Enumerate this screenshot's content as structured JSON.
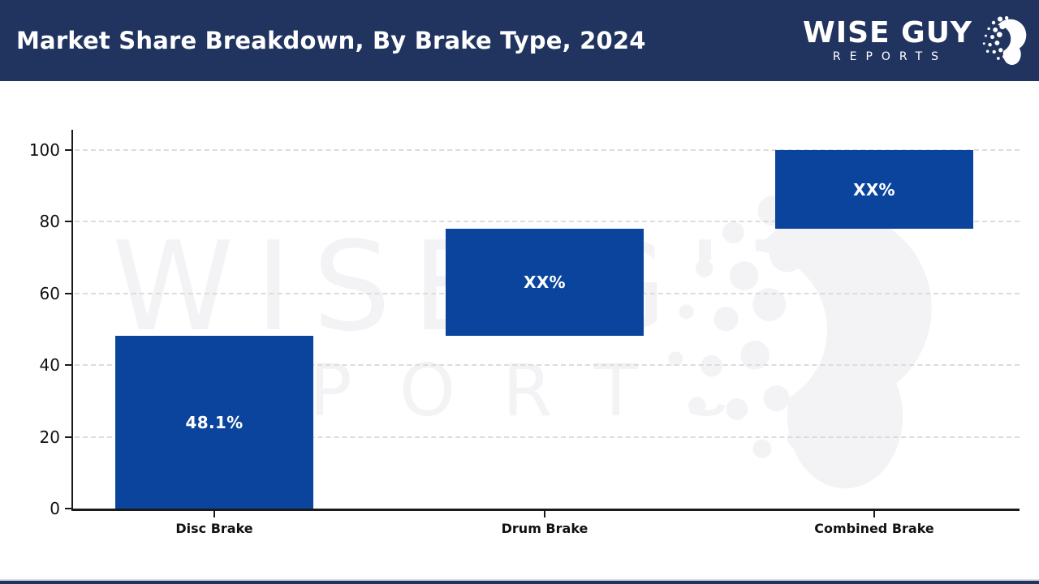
{
  "header": {
    "title": "Market Share Breakdown, By Brake Type, 2024",
    "bg_color": "#213460",
    "logo": {
      "line1": "WISE GUY",
      "line2": "REPORTS"
    }
  },
  "watermark": {
    "line1": "WISE GUY",
    "line2": "REPORTS"
  },
  "chart_data": {
    "type": "bar",
    "subtype": "floating-waterfall",
    "title": "Market Share Breakdown, By Brake Type, 2024",
    "categories": [
      "Disc Brake",
      "Drum Brake",
      "Combined Brake"
    ],
    "segments": [
      {
        "category": "Disc Brake",
        "start": 0,
        "end": 48.1,
        "label": "48.1%"
      },
      {
        "category": "Drum Brake",
        "start": 48.1,
        "end": 78,
        "label": "XX%"
      },
      {
        "category": "Combined Brake",
        "start": 78,
        "end": 100,
        "label": "XX%"
      }
    ],
    "yticks": [
      0,
      20,
      40,
      60,
      80,
      100
    ],
    "ylim": [
      0,
      105
    ],
    "xlabel": "",
    "ylabel": "",
    "grid": "horizontal-dashed",
    "legend": "none",
    "bar_color": "#0b449c",
    "label_color": "#ffffff"
  },
  "footer": {
    "bar_color": "#213460"
  }
}
